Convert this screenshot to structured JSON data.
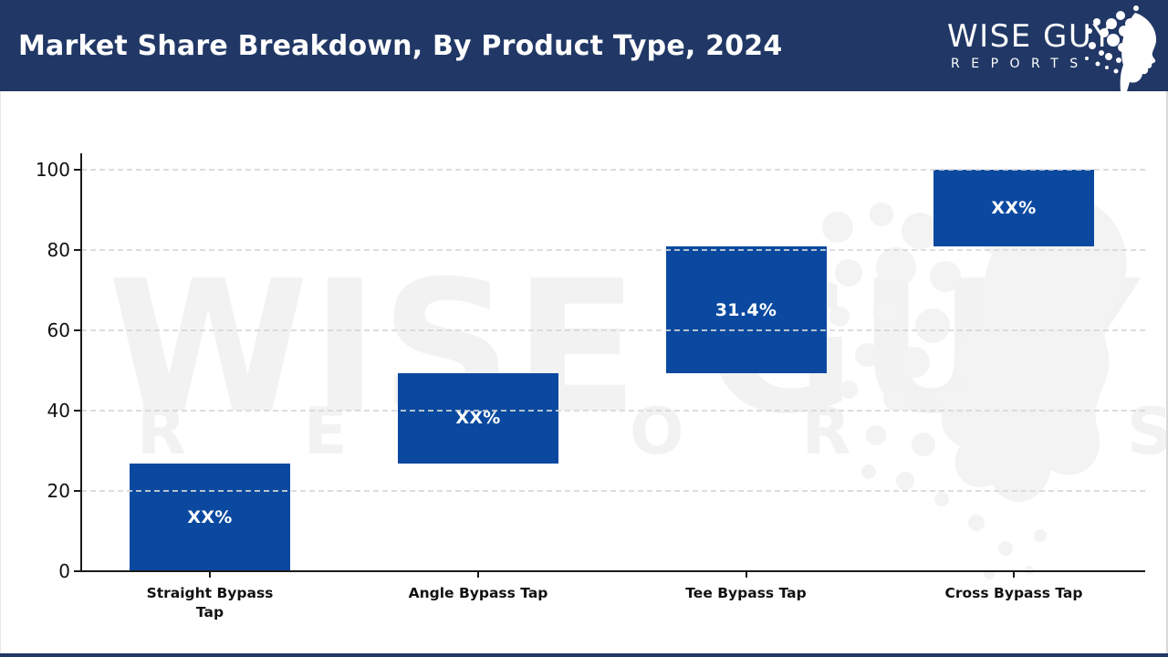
{
  "header": {
    "title": "Market Share Breakdown, By Product Type, 2024",
    "bg_color": "#213866",
    "logo": {
      "wordmark": "WISE GUY",
      "subtext": "REPORTS",
      "head_icon": "dotted-face-profile"
    }
  },
  "watermark": {
    "wordmark": "WISE GUY",
    "subtext": "REPORTS",
    "head_icon": "dotted-face-profile"
  },
  "chart_data": {
    "type": "bar",
    "variant": "floating-waterfall",
    "title": "Market Share Breakdown, By Product Type, 2024",
    "categories": [
      "Straight Bypass Tap",
      "Angle Bypass Tap",
      "Tee Bypass Tap",
      "Cross Bypass Tap"
    ],
    "category_label_lines": [
      [
        "Straight Bypass",
        "Tap"
      ],
      [
        "Angle Bypass Tap"
      ],
      [
        "Tee Bypass Tap"
      ],
      [
        "Cross Bypass Tap"
      ]
    ],
    "segments": [
      {
        "category": "Straight Bypass Tap",
        "start": 0,
        "end": 26.8,
        "value": 26.8,
        "value_label": "XX%"
      },
      {
        "category": "Angle Bypass Tap",
        "start": 26.8,
        "end": 49.4,
        "value": 22.6,
        "value_label": "XX%"
      },
      {
        "category": "Tee Bypass Tap",
        "start": 49.4,
        "end": 80.8,
        "value": 31.4,
        "value_label": "31.4%"
      },
      {
        "category": "Cross Bypass Tap",
        "start": 80.8,
        "end": 100,
        "value": 19.2,
        "value_label": "XX%"
      }
    ],
    "y_ticks": [
      0,
      20,
      40,
      60,
      80,
      100
    ],
    "ylim": [
      0,
      104
    ],
    "xlabel": "",
    "ylabel": "",
    "grid": true,
    "grid_style": "dashed",
    "legend": null,
    "bar_color": "#0b49a0",
    "bar_label_color": "#ffffff",
    "axis_color": "#1a1a1a"
  }
}
